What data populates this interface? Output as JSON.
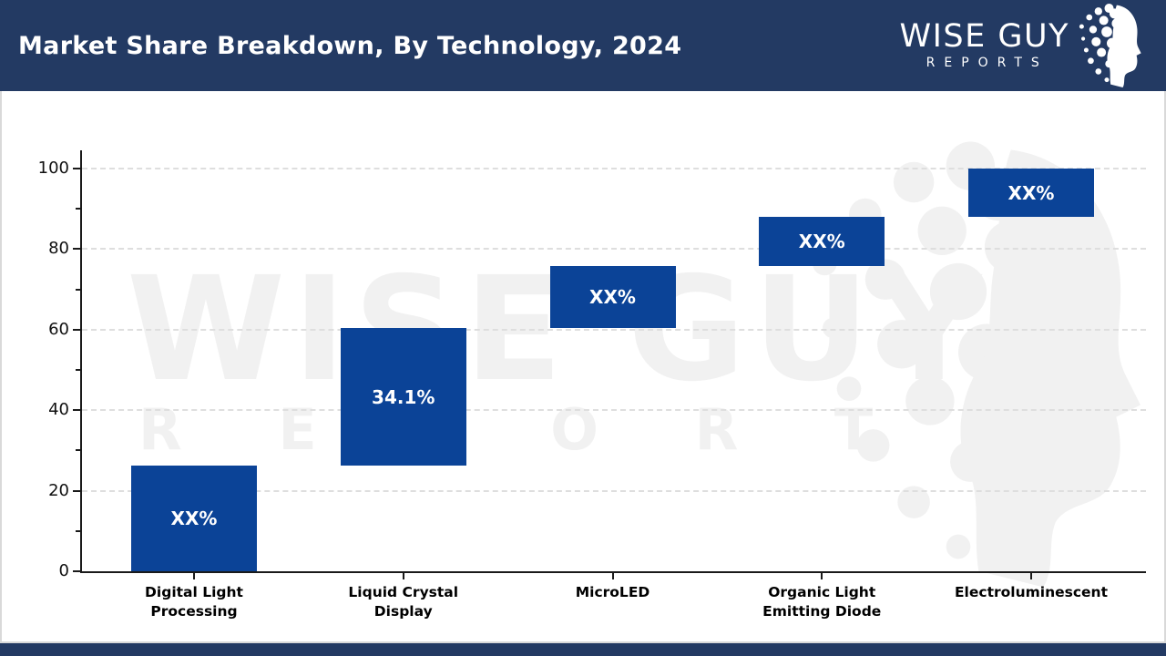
{
  "header": {
    "title": "Market Share Breakdown, By Technology, 2024",
    "logo": {
      "line1": "WISE GUY",
      "line2": "REPORTS"
    }
  },
  "watermark": {
    "line1": "WISE GUY",
    "line2": "R E P O R T S"
  },
  "colors": {
    "header_bg": "#233A63",
    "bar": "#0B4397",
    "bar_label": "#FFFFFF",
    "gridline": "#DEDEDE",
    "axis": "#1A1A1A",
    "watermark": "#F1F1F1"
  },
  "chart_data": {
    "type": "bar",
    "subtype": "waterfall",
    "title": "Market Share Breakdown, By Technology, 2024",
    "categories": [
      "Digital Light\nProcessing",
      "Liquid Crystal\nDisplay",
      "MicroLED",
      "Organic Light\nEmitting Diode",
      "Electroluminescent"
    ],
    "bars": [
      {
        "category": "Digital Light Processing",
        "start": 0,
        "end": 26.2,
        "value": 26.2,
        "label": "XX%"
      },
      {
        "category": "Liquid Crystal Display",
        "start": 26.2,
        "end": 60.3,
        "value": 34.1,
        "label": "34.1%"
      },
      {
        "category": "MicroLED",
        "start": 60.3,
        "end": 75.8,
        "value": 15.5,
        "label": "XX%"
      },
      {
        "category": "Organic Light Emitting Diode",
        "start": 75.8,
        "end": 88.0,
        "value": 12.2,
        "label": "XX%"
      },
      {
        "category": "Electroluminescent",
        "start": 88.0,
        "end": 100.0,
        "value": 12.0,
        "label": "XX%"
      }
    ],
    "xlabel": "",
    "ylabel": "",
    "ylim": [
      0,
      104
    ],
    "yticks": [
      0,
      20,
      40,
      60,
      80,
      100
    ],
    "minor_yticks": [
      10,
      30,
      50,
      70,
      90
    ],
    "grid": "dashed-horizontal",
    "legend": "none",
    "bar_color": "#0B4397",
    "label_color": "#FFFFFF"
  }
}
